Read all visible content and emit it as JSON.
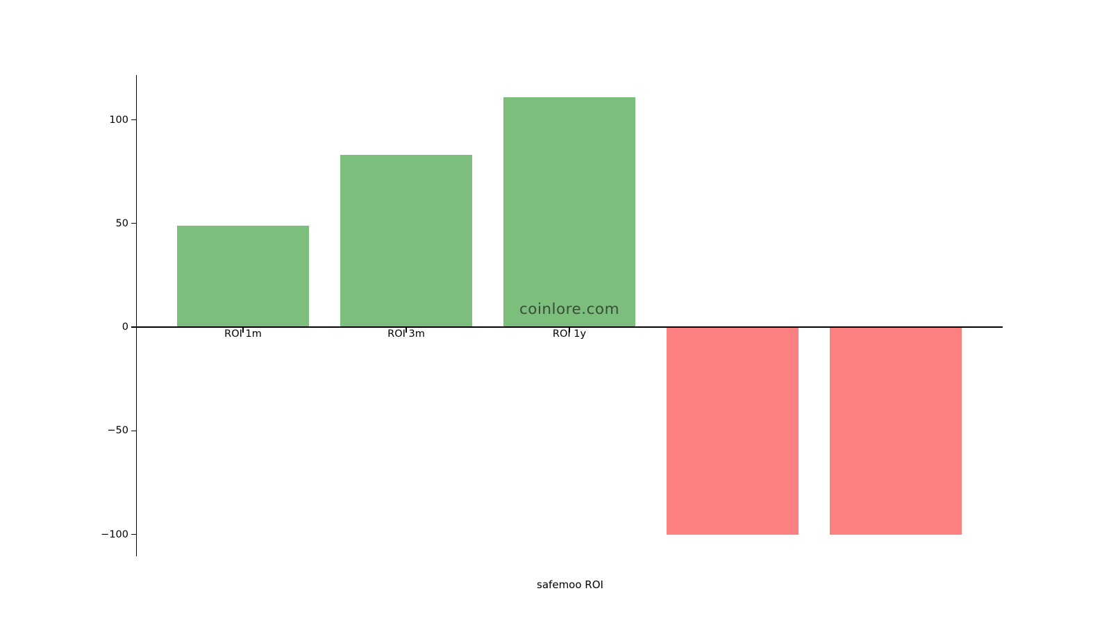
{
  "watermark": "coinlore.com",
  "chart_data": {
    "type": "bar",
    "categories": [
      "ROI 1m",
      "ROI 3m",
      "ROI 1y",
      "",
      ""
    ],
    "values": [
      49,
      83,
      111,
      -100,
      -100
    ],
    "xlabel": "safemoo ROI",
    "yticks": [
      100,
      50,
      0,
      -50,
      -100
    ],
    "ylim": [
      -110.5,
      121.5
    ],
    "grid": false,
    "legend": null,
    "positive_color": "#7cbe7c",
    "negative_color": "#fd8080",
    "axis_color": "#000000",
    "text_color": "#000000",
    "watermark_color": "#3c4a3c"
  }
}
